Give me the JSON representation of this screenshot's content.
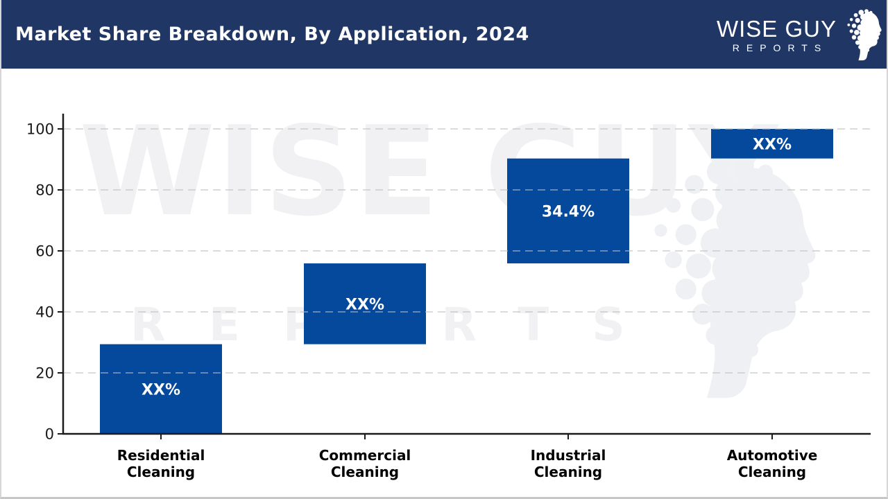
{
  "header": {
    "title": "Market Share Breakdown, By Application, 2024",
    "background_color": "#203766",
    "title_color": "#ffffff"
  },
  "logo": {
    "line1": "WISE GUY",
    "line2": "REPORTS",
    "icon": "head-profile-dots-icon",
    "color": "#ffffff"
  },
  "watermark": {
    "line1": "WISE GUY",
    "line2": "REPORTS",
    "icon": "head-profile-dots-icon",
    "color": "#f1f1f4"
  },
  "chart_data": {
    "type": "bar",
    "subtype": "waterfall-stacked",
    "title": "Market Share Breakdown, By Application, 2024",
    "categories": [
      "Residential Cleaning",
      "Commercial Cleaning",
      "Industrial Cleaning",
      "Automotive Cleaning"
    ],
    "segments": [
      {
        "category": "Residential Cleaning",
        "start": 0,
        "end": 29.4,
        "value_pct": 29.4,
        "label": "XX%"
      },
      {
        "category": "Commercial Cleaning",
        "start": 29.4,
        "end": 55.9,
        "value_pct": 26.5,
        "label": "XX%"
      },
      {
        "category": "Industrial Cleaning",
        "start": 55.9,
        "end": 90.3,
        "value_pct": 34.4,
        "label": "34.4%"
      },
      {
        "category": "Automotive Cleaning",
        "start": 90.3,
        "end": 100,
        "value_pct": 9.7,
        "label": "XX%"
      }
    ],
    "xlabel": "",
    "ylabel": "",
    "ylim": [
      0,
      105
    ],
    "yticks": [
      0,
      20,
      40,
      60,
      80,
      100
    ],
    "grid": "horizontal-dashed",
    "legend": "none",
    "bar_color": "#05499c",
    "bar_label_color": "#ffffff",
    "axis_color": "#1a1a1a",
    "tick_label_color": "#1a1a1a",
    "category_label_color": "#000000",
    "grid_color": "#bfbfbf"
  }
}
